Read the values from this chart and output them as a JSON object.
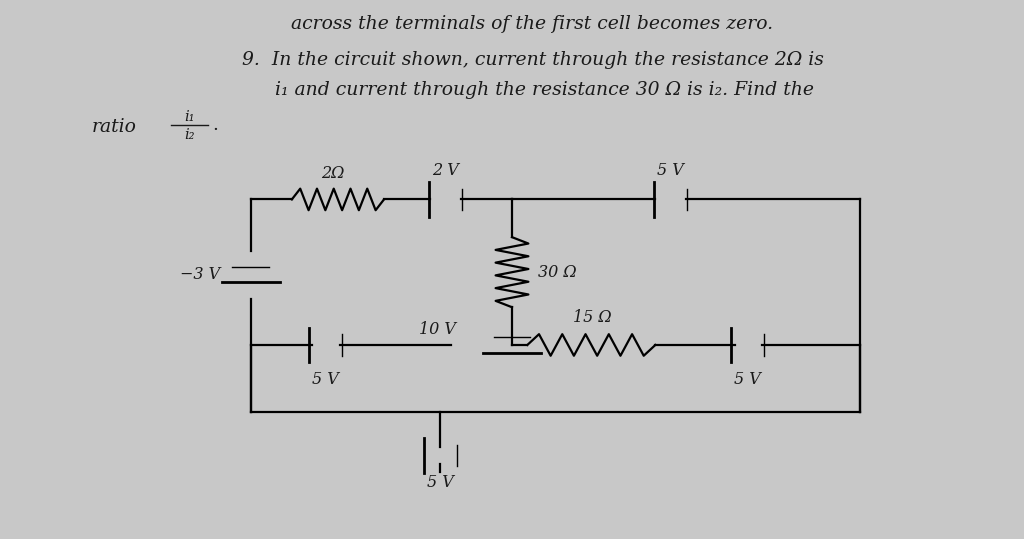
{
  "background_color": "#c8c8c8",
  "text_color": "#1a1a1a",
  "title_line": "across the terminals of the first cell becomes zero.",
  "q_line1": "9.  In the circuit shown, current through the resistance 2Ω is",
  "q_line2": "    i₁ and current through the resistance 30 Ω is i₂. Find the",
  "q_ratio": "ratio",
  "lc": "black",
  "lw": 1.6,
  "font_size": 13.5,
  "label_size": 11.5
}
